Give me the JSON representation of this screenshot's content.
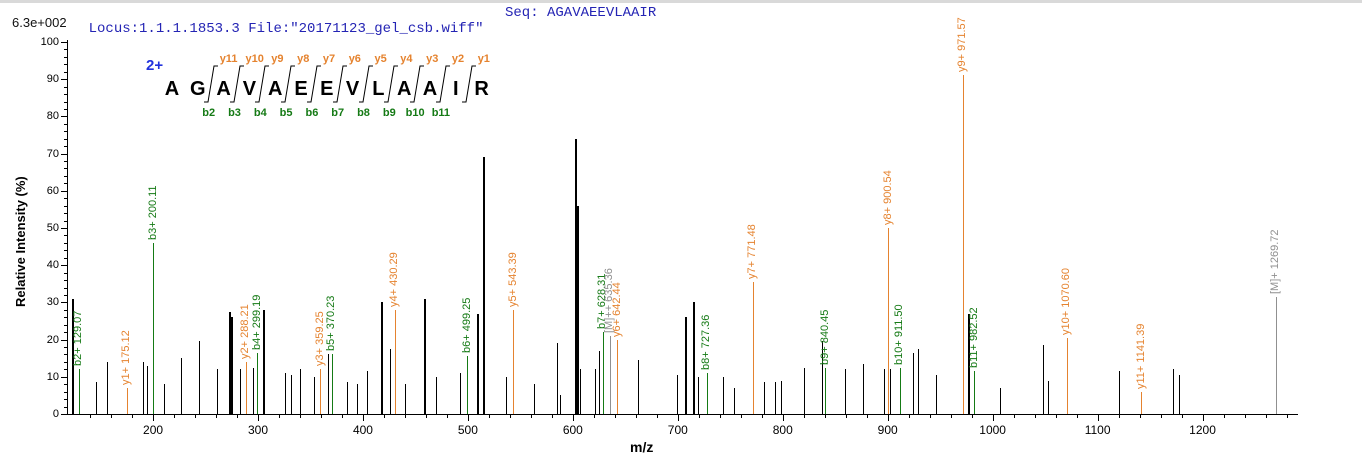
{
  "header": {
    "locus_file": "Locus:1.1.1.1853.3 File:\"20171123_gel_csb.wiff\"",
    "seq_label": "Seq: AGAVAEEVLAAIR",
    "max_intensity": "6.3e+002"
  },
  "sequence": {
    "charge": "2+",
    "residues": [
      "A",
      "G",
      "A",
      "V",
      "A",
      "E",
      "E",
      "V",
      "L",
      "A",
      "A",
      "I",
      "R"
    ],
    "gaps": [
      {
        "y": "y11",
        "b": "b2"
      },
      {
        "y": "y10",
        "b": "b3"
      },
      {
        "y": "y9",
        "b": "b4"
      },
      {
        "y": "y8",
        "b": "b5"
      },
      {
        "y": "y7",
        "b": "b6"
      },
      {
        "y": "y6",
        "b": "b7"
      },
      {
        "y": "y5",
        "b": "b8"
      },
      {
        "y": "y4",
        "b": "b9"
      },
      {
        "y": "y3",
        "b": "b10"
      },
      {
        "y": "y2",
        "b": "b11"
      },
      {
        "y": "y1",
        "b": ""
      }
    ]
  },
  "axes": {
    "x_label": "m/z",
    "y_label": "Relative  Intensity (%)",
    "x_range": [
      118,
      1290
    ],
    "y_range": [
      0,
      100
    ],
    "x_ticks": [
      200,
      300,
      400,
      500,
      600,
      700,
      800,
      900,
      1000,
      1100,
      1200
    ],
    "x_minor_start": 140,
    "x_minor_end": 1280,
    "x_minor_step": 20,
    "y_ticks": [
      0,
      10,
      20,
      30,
      40,
      50,
      60,
      70,
      80,
      90,
      100
    ],
    "y_minor_step": 2
  },
  "colors": {
    "b_ion": "#157a15",
    "y_ion": "#e5832f",
    "precursor": "#909090",
    "unlabeled": "#000000",
    "header_blue": "#2424b4",
    "charge_blue": "#2233dd"
  },
  "chart_data": {
    "type": "bar",
    "subtype": "ms2-peptide-fragmentation-spectrum",
    "title": "Locus:1.1.1.1853.3 File:\"20171123_gel_csb.wiff\" Seq: AGAVAEEVLAAIR",
    "xlabel": "m/z",
    "ylabel": "Relative  Intensity (%)",
    "xlim": [
      118,
      1290
    ],
    "ylim": [
      0,
      100
    ],
    "base_peak_intensity": "6.3e+002",
    "annotated_peaks": [
      {
        "mz": 129.07,
        "intensity": 12,
        "type": "b",
        "label": "b2+ 129.07"
      },
      {
        "mz": 175.12,
        "intensity": 7,
        "type": "y",
        "label": "y1+ 175.12"
      },
      {
        "mz": 200.11,
        "intensity": 46,
        "type": "b",
        "label": "b3+ 200.11"
      },
      {
        "mz": 288.21,
        "intensity": 14,
        "type": "y",
        "label": "y2+ 288.21"
      },
      {
        "mz": 299.19,
        "intensity": 16.5,
        "type": "b",
        "label": "b4+ 299.19"
      },
      {
        "mz": 359.25,
        "intensity": 12,
        "type": "y",
        "label": "y3+ 359.25"
      },
      {
        "mz": 370.23,
        "intensity": 16,
        "type": "b",
        "label": "b5+ 370.23"
      },
      {
        "mz": 430.29,
        "intensity": 28,
        "type": "y",
        "label": "y4+ 430.29"
      },
      {
        "mz": 499.25,
        "intensity": 15.5,
        "type": "b",
        "label": "b6+ 499.25"
      },
      {
        "mz": 543.39,
        "intensity": 28,
        "type": "y",
        "label": "y5+ 543.39"
      },
      {
        "mz": 628.31,
        "intensity": 22,
        "type": "b",
        "label": "b7+ 628.31"
      },
      {
        "mz": 635.36,
        "intensity": 21,
        "type": "M",
        "label": "[M]++ 635.36"
      },
      {
        "mz": 642.44,
        "intensity": 20,
        "type": "y",
        "label": "y6+ 642.44"
      },
      {
        "mz": 727.36,
        "intensity": 11,
        "type": "b",
        "label": "b8+ 727.36"
      },
      {
        "mz": 771.48,
        "intensity": 35.5,
        "type": "y",
        "label": "y7+ 771.48"
      },
      {
        "mz": 840.45,
        "intensity": 12.5,
        "type": "b",
        "label": "b9+ 840.45"
      },
      {
        "mz": 900.54,
        "intensity": 50,
        "type": "y",
        "label": "y8+ 900.54"
      },
      {
        "mz": 911.5,
        "intensity": 12.5,
        "type": "b",
        "label": "b10+ 911.50"
      },
      {
        "mz": 971.57,
        "intensity": 91,
        "type": "y",
        "label": "y9+ 971.57"
      },
      {
        "mz": 982.52,
        "intensity": 11.5,
        "type": "b",
        "label": "b11+ 982.52"
      },
      {
        "mz": 1070.6,
        "intensity": 20.5,
        "type": "y",
        "label": "y10+ 1070.60"
      },
      {
        "mz": 1141.39,
        "intensity": 6,
        "type": "y",
        "label": "y11+ 1141.39"
      },
      {
        "mz": 1269.72,
        "intensity": 31.5,
        "type": "M",
        "label": "[M]+ 1269.72"
      }
    ],
    "unannotated_peaks": [
      [
        123,
        31
      ],
      [
        146,
        8.5
      ],
      [
        156,
        14
      ],
      [
        190,
        14
      ],
      [
        194,
        13
      ],
      [
        210,
        8
      ],
      [
        227,
        15
      ],
      [
        244,
        19.5
      ],
      [
        261,
        12
      ],
      [
        272,
        27.5
      ],
      [
        274.5,
        26
      ],
      [
        283,
        12
      ],
      [
        295,
        12.5
      ],
      [
        305,
        28
      ],
      [
        326,
        11
      ],
      [
        331,
        10.5
      ],
      [
        340,
        12
      ],
      [
        353,
        10
      ],
      [
        367,
        16
      ],
      [
        385,
        8.5
      ],
      [
        394,
        8
      ],
      [
        404,
        11.5
      ],
      [
        417,
        30
      ],
      [
        426,
        17.5
      ],
      [
        440,
        8
      ],
      [
        458,
        31
      ],
      [
        470,
        10
      ],
      [
        492,
        11
      ],
      [
        508.5,
        27
      ],
      [
        514.3,
        69
      ],
      [
        536,
        10
      ],
      [
        563,
        8
      ],
      [
        585,
        19
      ],
      [
        588,
        5
      ],
      [
        602,
        74
      ],
      [
        604.3,
        56
      ],
      [
        607,
        12
      ],
      [
        621,
        12
      ],
      [
        624.5,
        17
      ],
      [
        662,
        14.5
      ],
      [
        699,
        10.5
      ],
      [
        706.7,
        26
      ],
      [
        714.3,
        30
      ],
      [
        719,
        10
      ],
      [
        743,
        10
      ],
      [
        754,
        7
      ],
      [
        782,
        8.5
      ],
      [
        792.4,
        8.5
      ],
      [
        798,
        9
      ],
      [
        820,
        12.5
      ],
      [
        837,
        19.5
      ],
      [
        859,
        12
      ],
      [
        876,
        13.5
      ],
      [
        896,
        12
      ],
      [
        902,
        12
      ],
      [
        923.8,
        16.5
      ],
      [
        928.6,
        17.5
      ],
      [
        945.7,
        10.5
      ],
      [
        976.2,
        27
      ],
      [
        1007,
        7
      ],
      [
        1047.6,
        18.5
      ],
      [
        1053,
        9
      ],
      [
        1120,
        11.5
      ],
      [
        1171.4,
        12
      ],
      [
        1177.1,
        10.5
      ]
    ]
  }
}
